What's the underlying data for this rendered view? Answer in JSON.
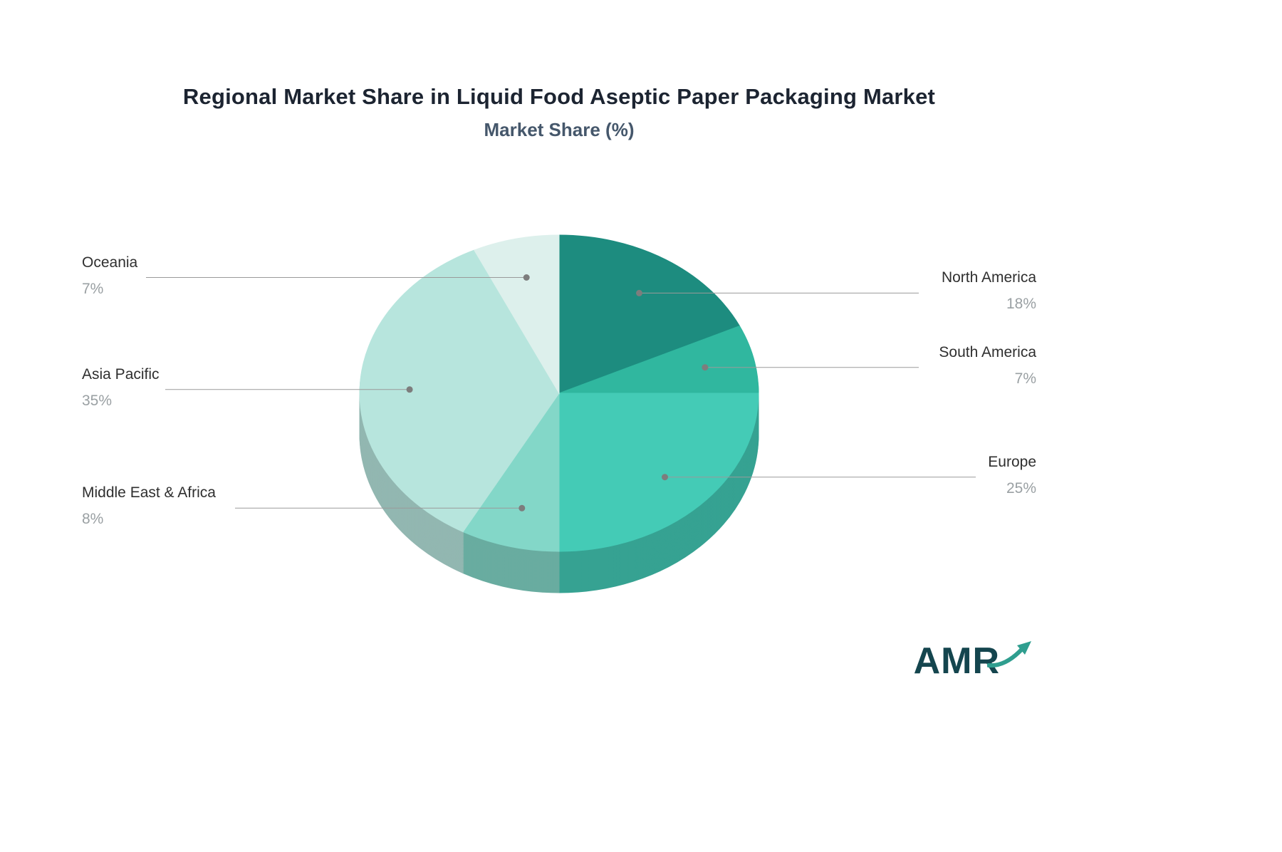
{
  "chart_data": {
    "type": "pie",
    "title": "Regional Market Share in Liquid Food Aseptic Paper Packaging Market",
    "subtitle": "Market Share (%)",
    "unit": "%",
    "start_angle": "top",
    "direction": "clockwise",
    "legend": "none",
    "style": "3d-pie",
    "slices": [
      {
        "label": "North America",
        "value": 18,
        "value_label": "18%",
        "color": "#1d8c7f"
      },
      {
        "label": "South America",
        "value": 7,
        "value_label": "7%",
        "color": "#30b79f"
      },
      {
        "label": "Europe",
        "value": 25,
        "value_label": "25%",
        "color": "#44cbb6"
      },
      {
        "label": "Middle East & Africa",
        "value": 8,
        "value_label": "8%",
        "color": "#83d7c8"
      },
      {
        "label": "Asia Pacific",
        "value": 35,
        "value_label": "35%",
        "color": "#b7e5dd"
      },
      {
        "label": "Oceania",
        "value": 7,
        "value_label": "7%",
        "color": "#ddf0ec"
      }
    ],
    "label_style": {
      "name_color": "#2f2f2f",
      "value_color": "#9aa0a3",
      "line_color": "#9a9a9a",
      "dot_color": "#7d7d7d"
    }
  },
  "logo": {
    "text": "AMR",
    "color": "#14454e",
    "arrow_color": "#2f9e8f"
  }
}
